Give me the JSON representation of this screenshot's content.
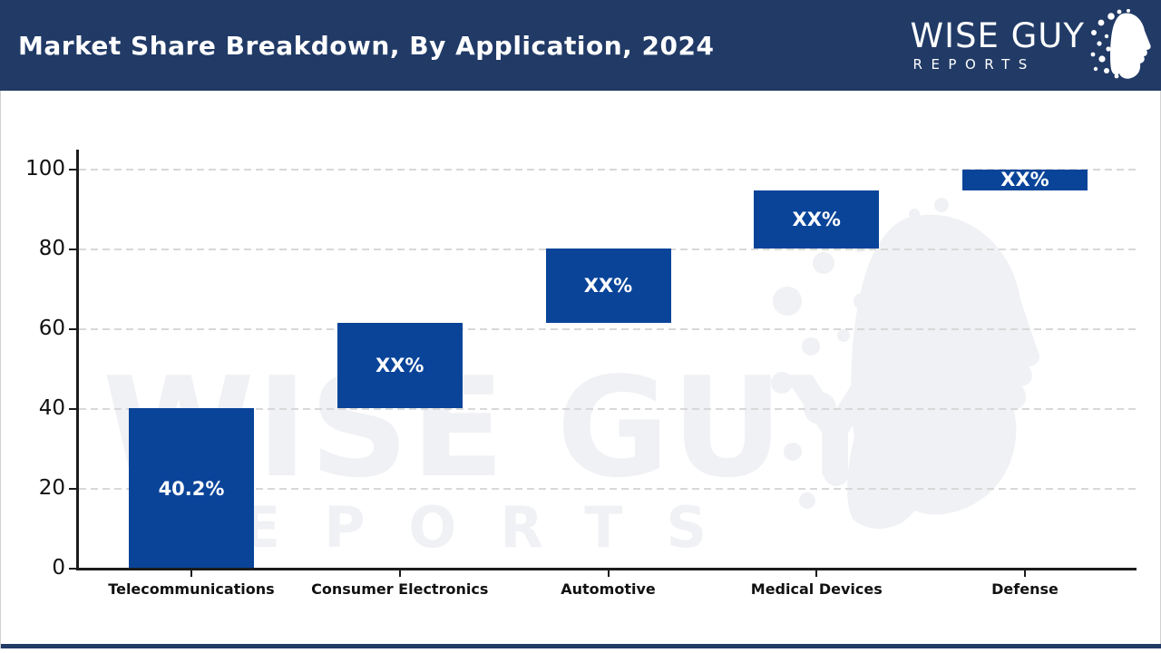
{
  "header": {
    "title": "Market Share Breakdown, By Application, 2024",
    "logo": {
      "wordmark": "WISE GUY",
      "subtext": "REPORTS"
    }
  },
  "watermark": {
    "wordmark": "WISE GUY",
    "subtext": "REPORTS"
  },
  "chart_data": {
    "type": "bar",
    "subtype": "waterfall",
    "title": "Market Share Breakdown, By Application, 2024",
    "categories": [
      "Telecommunications",
      "Consumer Electronics",
      "Automotive",
      "Medical Devices",
      "Defense"
    ],
    "segments": [
      {
        "category": "Telecommunications",
        "start": 0,
        "end": 40.2,
        "label": "40.2%"
      },
      {
        "category": "Consumer Electronics",
        "start": 40.2,
        "end": 61.5,
        "label": "XX%"
      },
      {
        "category": "Automotive",
        "start": 61.5,
        "end": 80.3,
        "label": "XX%"
      },
      {
        "category": "Medical Devices",
        "start": 80.3,
        "end": 94.8,
        "label": "XX%"
      },
      {
        "category": "Defense",
        "start": 94.8,
        "end": 100,
        "label": "XX%"
      }
    ],
    "ylim": [
      0,
      100
    ],
    "yticks": [
      0,
      20,
      40,
      60,
      80,
      100
    ],
    "xlabel": "",
    "ylabel": "",
    "grid": "horizontal-dashed",
    "legend": "none",
    "bar_color": "#0A4499",
    "bar_label_color": "#ffffff"
  },
  "colors": {
    "header_bg": "#213A66",
    "bar": "#0A4499",
    "axis": "#1c1c1c",
    "grid": "#d8d8d8",
    "watermark": "#f0f1f4"
  }
}
